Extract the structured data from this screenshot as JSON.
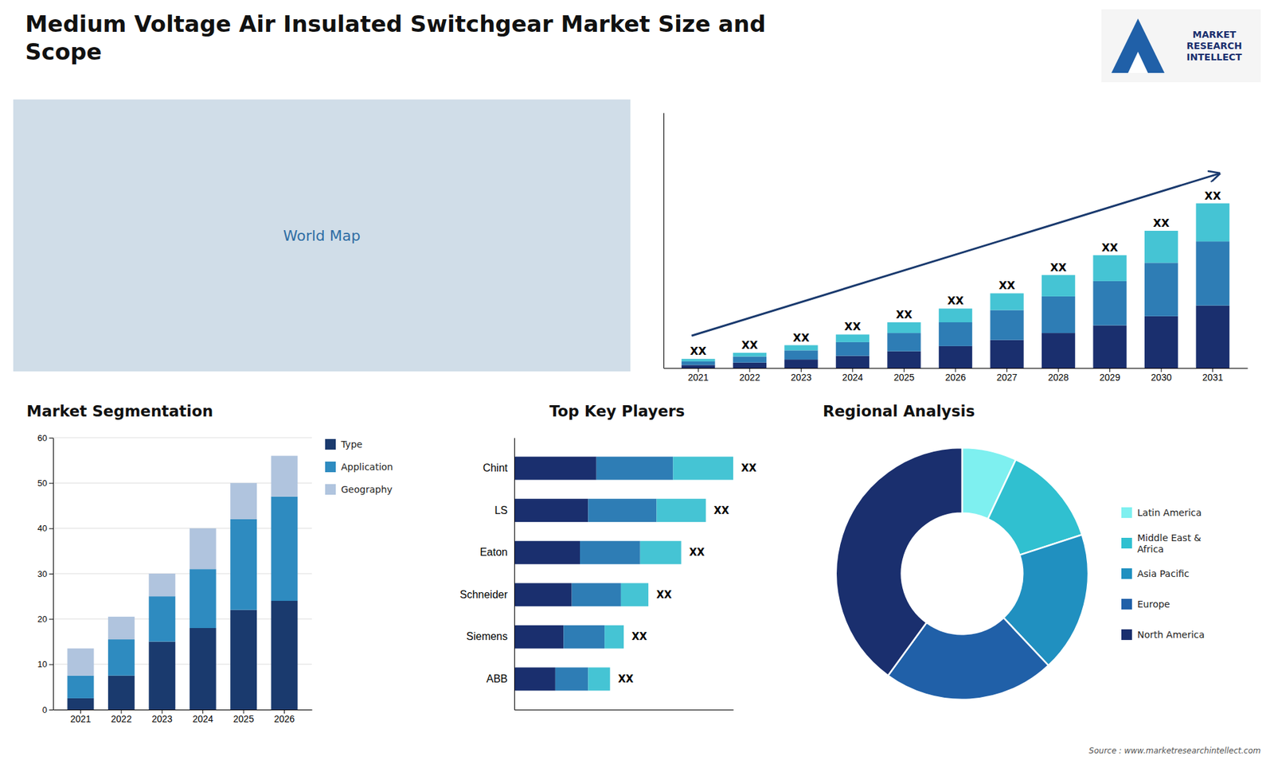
{
  "title": "Medium Voltage Air Insulated Switchgear Market Size and\nScope",
  "annotations": [
    "MARKET\nRESEARCH\nINTELLECT",
    "Source : www.marketresearchintellect.com"
  ],
  "chart_data": [
    {
      "type": "map",
      "annotations": [
        "World Map"
      ]
    },
    {
      "type": "bar",
      "stacked": true,
      "categories": [
        "2021",
        "2022",
        "2023",
        "2024",
        "2025",
        "2026",
        "2027",
        "2028",
        "2029",
        "2030",
        "2031"
      ],
      "series": [
        {
          "color": "#1a2f6e",
          "values": [
            1.0,
            1.8,
            2.8,
            4.0,
            5.5,
            7.2,
            9.2,
            11.5,
            14.0,
            17.0,
            20.5
          ]
        },
        {
          "color": "#2e7db5",
          "values": [
            1.2,
            2.0,
            3.0,
            4.5,
            6.0,
            7.8,
            9.8,
            12.0,
            14.5,
            17.5,
            21.0
          ]
        },
        {
          "color": "#45c4d4",
          "values": [
            0.8,
            1.2,
            1.7,
            2.5,
            3.5,
            4.5,
            5.5,
            7.0,
            8.5,
            10.5,
            12.5
          ]
        }
      ],
      "ylim": [
        0,
        83.7
      ],
      "tick_labels": "x",
      "annotations": [
        "XX",
        "XX",
        "XX",
        "XX",
        "XX",
        "XX",
        "XX",
        "XX",
        "XX",
        "XX",
        "XX"
      ]
    },
    {
      "type": "bar",
      "stacked": true,
      "title": "Market Segmentation",
      "categories": [
        "2021",
        "2022",
        "2023",
        "2024",
        "2025",
        "2026"
      ],
      "series": [
        {
          "name": "Type",
          "color": "#1a3a6e",
          "values": [
            2.5,
            7.5,
            15,
            18,
            22,
            24
          ]
        },
        {
          "name": "Application",
          "color": "#2e8bc0",
          "values": [
            5,
            8,
            10,
            13,
            20,
            23
          ]
        },
        {
          "name": "Geography",
          "color": "#b0c4de",
          "values": [
            6,
            5,
            5,
            9,
            8,
            9
          ]
        }
      ],
      "ylim": [
        0,
        60
      ],
      "yticks": [
        0,
        10,
        20,
        30,
        40,
        50,
        60
      ],
      "grid": true,
      "legend": "right"
    },
    {
      "type": "bar",
      "orientation": "horizontal",
      "stacked": true,
      "title": "Top Key Players",
      "categories": [
        "Chint",
        "LS",
        "Eaton",
        "Schneider",
        "Siemens",
        "ABB"
      ],
      "series": [
        {
          "color": "#1a2f6e",
          "values": [
            0.3,
            0.27,
            0.24,
            0.21,
            0.18,
            0.15
          ]
        },
        {
          "color": "#2e7db5",
          "values": [
            0.28,
            0.25,
            0.22,
            0.18,
            0.15,
            0.12
          ]
        },
        {
          "color": "#45c4d4",
          "values": [
            0.22,
            0.18,
            0.15,
            0.1,
            0.07,
            0.08
          ]
        }
      ],
      "xlim": [
        0,
        0.8
      ],
      "tick_labels": "y",
      "annotations": [
        "XX",
        "XX",
        "XX",
        "XX",
        "XX",
        "XX"
      ]
    },
    {
      "type": "pie",
      "title": "Regional Analysis",
      "categories": [
        "Latin America",
        "Middle East &\nAfrica",
        "Asia Pacific",
        "Europe",
        "North America"
      ],
      "values": [
        7,
        13,
        18,
        22,
        40
      ],
      "colors": [
        "#7ef0f0",
        "#30c0d0",
        "#2090c0",
        "#2060a8",
        "#1a2f6e"
      ],
      "legend": "right"
    }
  ]
}
